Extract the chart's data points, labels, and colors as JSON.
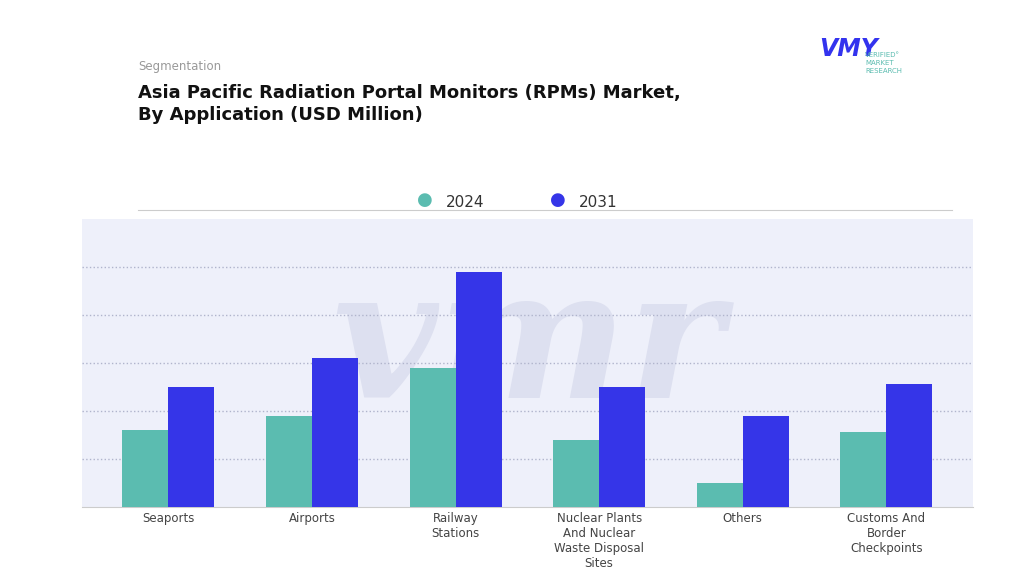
{
  "title_label": "Segmentation",
  "title": "Asia Pacific Radiation Portal Monitors (RPMs) Market,\nBy Application (USD Million)",
  "categories": [
    "Seaports",
    "Airports",
    "Railway\nStations",
    "Nuclear Plants\nAnd Nuclear\nWaste Disposal\nSites",
    "Others",
    "Customs And\nBorder\nCheckpoints"
  ],
  "values_2024": [
    3.2,
    3.8,
    5.8,
    2.8,
    1.0,
    3.1
  ],
  "values_2031": [
    5.0,
    6.2,
    9.8,
    5.0,
    3.8,
    5.1
  ],
  "color_2024": "#5bbcb0",
  "color_2031": "#3535e8",
  "legend_2024": "2024",
  "legend_2031": "2031",
  "bg_color": "#ffffff",
  "plot_bg_color": "#eef0fa",
  "bar_width": 0.32,
  "grid_color": "#b0b4cc",
  "watermark_color": "#dde0f0",
  "title_label_color": "#999999",
  "title_color": "#111111",
  "vmr_logo_color": "#3333ee",
  "vmr_text_color": "#5bbcb0"
}
